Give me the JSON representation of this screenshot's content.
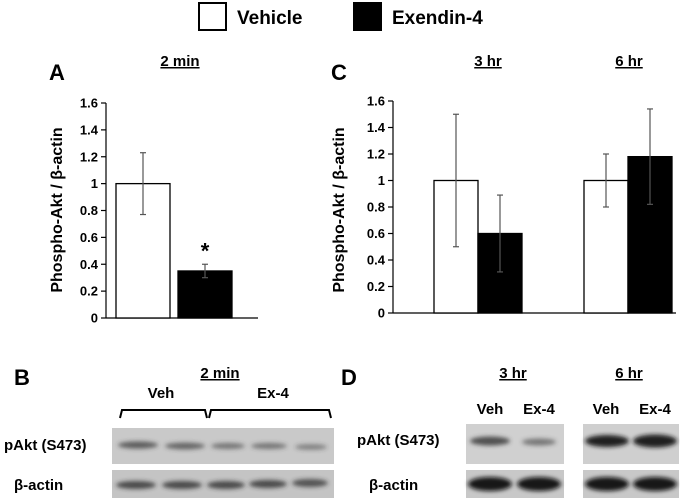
{
  "legend": {
    "items": [
      {
        "label": "Vehicle",
        "color": "#ffffff"
      },
      {
        "label": "Exendin-4",
        "color": "#000000"
      }
    ]
  },
  "chart_data": [
    {
      "type": "bar",
      "panel": "A",
      "groups": [
        "2 min"
      ],
      "series": [
        {
          "name": "Vehicle",
          "color": "#ffffff",
          "values": [
            1.0
          ],
          "errors": [
            0.23
          ]
        },
        {
          "name": "Exendin-4",
          "color": "#000000",
          "values": [
            0.35
          ],
          "errors": [
            0.05
          ]
        }
      ],
      "ylabel": "Phospho-Akt / β-actin",
      "ylim": [
        0,
        1.6
      ],
      "yticks": [
        "0",
        "0.2",
        "0.4",
        "0.6",
        "0.8",
        "1",
        "1.2",
        "1.4",
        "1.6"
      ],
      "annotations": [
        "*"
      ],
      "grid": false
    },
    {
      "type": "bar",
      "panel": "C",
      "groups": [
        "3 hr",
        "6 hr"
      ],
      "series": [
        {
          "name": "Vehicle",
          "color": "#ffffff",
          "values": [
            1.0,
            1.0
          ],
          "errors": [
            0.5,
            0.2
          ]
        },
        {
          "name": "Exendin-4",
          "color": "#000000",
          "values": [
            0.6,
            1.18
          ],
          "errors": [
            0.29,
            0.36
          ]
        }
      ],
      "ylabel": "Phospho-Akt / β-actin",
      "ylim": [
        0,
        1.6
      ],
      "yticks": [
        "0",
        "0.2",
        "0.4",
        "0.6",
        "0.8",
        "1",
        "1.2",
        "1.4",
        "1.6"
      ],
      "grid": false
    }
  ],
  "blots": {
    "B": {
      "panel": "B",
      "time": "2 min",
      "groups": [
        "Veh",
        "Ex-4"
      ],
      "rows": [
        "pAkt (S473)",
        "β-actin"
      ]
    },
    "D": {
      "panel": "D",
      "times": [
        "3 hr",
        "6 hr"
      ],
      "lanes": [
        "Veh",
        "Ex-4",
        "Veh",
        "Ex-4"
      ],
      "rows": [
        "pAkt (S473)",
        "β-actin"
      ]
    }
  }
}
